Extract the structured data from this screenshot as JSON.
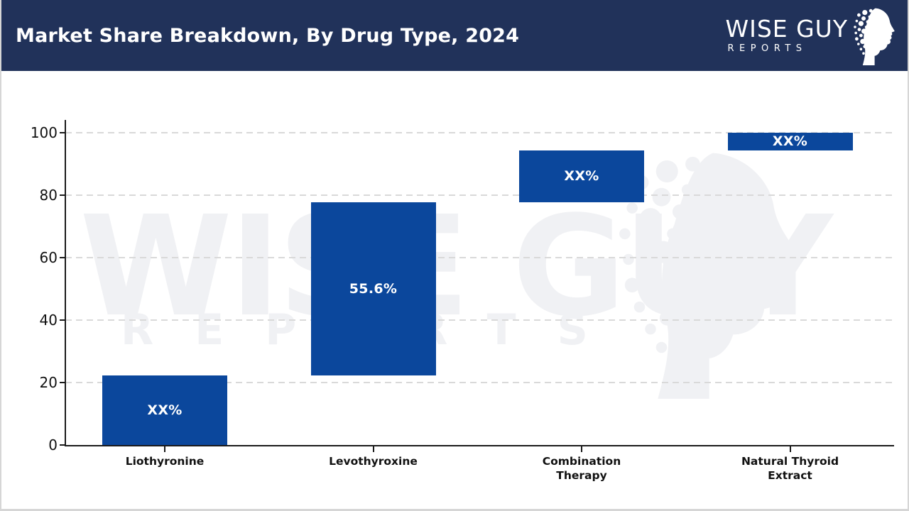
{
  "header": {
    "title": "Market Share Breakdown, By Drug Type, 2024",
    "logo": {
      "wordmark": "WISE GUY",
      "subtext": "REPORTS",
      "icon": "dotted-head-icon"
    }
  },
  "watermark": {
    "line1": "WISE GUY",
    "line2": "REPORTS",
    "icon": "dotted-head-watermark-icon"
  },
  "colors": {
    "header_bg": "#21325a",
    "bar_fill": "#0b479c",
    "bar_label_text": "#ffffff",
    "gridline": "#d9d9d9",
    "axis": "#1a1a1a",
    "watermark": "#f0f1f4",
    "card_border": "#d6d6d6"
  },
  "chart_data": {
    "type": "bar",
    "variant": "waterfall",
    "title": "Market Share Breakdown, By Drug Type, 2024",
    "xlabel": "",
    "ylabel": "",
    "ylim": [
      0,
      104
    ],
    "yticks": [
      0,
      20,
      40,
      60,
      80,
      100
    ],
    "grid": "horizontal dashed",
    "legend": "none",
    "categories": [
      "Liothyronine",
      "Levothyroxine",
      "Combination Therapy",
      "Natural Thyroid Extract"
    ],
    "category_label_lines": [
      [
        "Liothyronine"
      ],
      [
        "Levothyroxine"
      ],
      [
        "Combination",
        "Therapy"
      ],
      [
        "Natural Thyroid",
        "Extract"
      ]
    ],
    "bars": [
      {
        "category": "Liothyronine",
        "start": 0,
        "end": 22.2,
        "label": "XX%"
      },
      {
        "category": "Levothyroxine",
        "start": 22.2,
        "end": 77.8,
        "label": "55.6%"
      },
      {
        "category": "Combination Therapy",
        "start": 77.8,
        "end": 94.4,
        "label": "XX%"
      },
      {
        "category": "Natural Thyroid Extract",
        "start": 94.4,
        "end": 100,
        "label": "XX%"
      }
    ]
  }
}
